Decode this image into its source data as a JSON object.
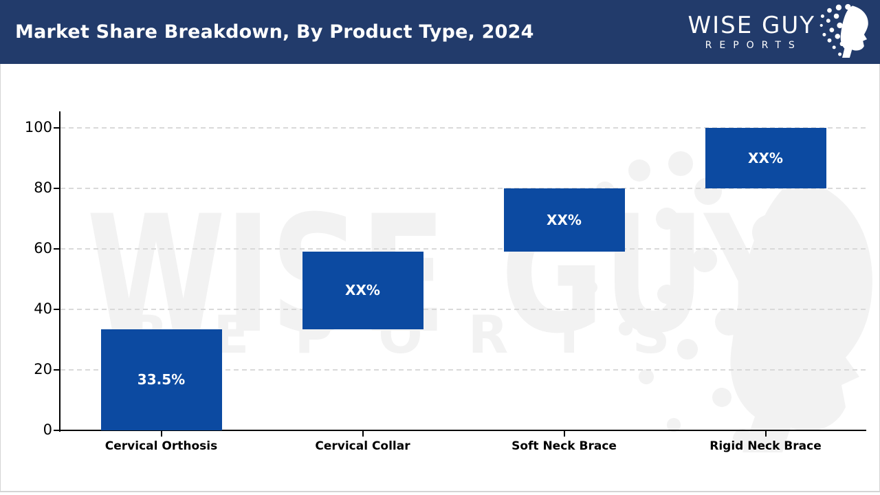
{
  "header": {
    "title": "Market Share Breakdown, By Product Type, 2024",
    "logo": {
      "wordmark": "WISE GUY",
      "subtext": "REPORTS"
    }
  },
  "watermark": {
    "wordmark": "WISE GUY",
    "subtext": "REPORTS"
  },
  "colors": {
    "header_bg": "#223b6b",
    "bar": "#0c4aa1",
    "bar_label": "#ffffff",
    "gridline": "#d9d9d9",
    "axis": "#000000",
    "watermark": "#f2f2f2",
    "frame_border": "#d4d4d4"
  },
  "chart_data": {
    "type": "bar",
    "subtype": "waterfall",
    "title": "Market Share Breakdown, By Product Type, 2024",
    "xlabel": "",
    "ylabel": "",
    "categories": [
      "Cervical Orthosis",
      "Cervical Collar",
      "Soft Neck Brace",
      "Rigid Neck Brace"
    ],
    "bars": [
      {
        "category": "Cervical Orthosis",
        "start": 0,
        "end": 33.5,
        "label": "33.5%"
      },
      {
        "category": "Cervical Collar",
        "start": 33.5,
        "end": 59,
        "label": "XX%"
      },
      {
        "category": "Soft Neck Brace",
        "start": 59,
        "end": 80,
        "label": "XX%"
      },
      {
        "category": "Rigid Neck Brace",
        "start": 80,
        "end": 100,
        "label": "XX%"
      }
    ],
    "yticks": [
      0,
      20,
      40,
      60,
      80,
      100
    ],
    "ylim": [
      0,
      105
    ],
    "grid": true,
    "grid_style": "dashed",
    "legend": "none",
    "bar_color": "#0c4aa1"
  }
}
